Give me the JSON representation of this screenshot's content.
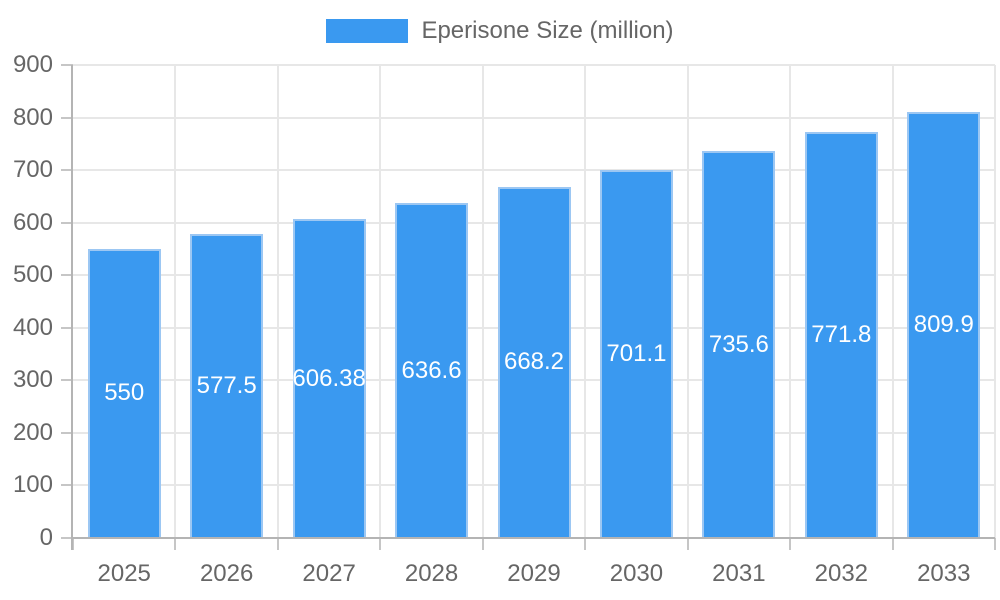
{
  "chart": {
    "colors": {
      "bar_fill": "#3a99f0",
      "bar_border": "#9cc7f3",
      "grid": "#e7e7e7",
      "axis": "#b4b4b4",
      "tick": "#c6c6c6",
      "text": "#666666",
      "bar_label_text": "#ffffff",
      "background": "#ffffff"
    }
  },
  "chart_data": {
    "type": "bar",
    "title": "",
    "xlabel": "",
    "ylabel": "",
    "legend_position": "top",
    "grid": true,
    "categories": [
      "2025",
      "2026",
      "2027",
      "2028",
      "2029",
      "2030",
      "2031",
      "2032",
      "2033"
    ],
    "series": [
      {
        "name": "Eperisone Size (million)",
        "values": [
          550,
          577.5,
          606.38,
          636.6,
          668.2,
          701.1,
          735.6,
          771.8,
          809.9
        ]
      }
    ],
    "value_labels": [
      "550",
      "577.5",
      "606.38",
      "636.6",
      "668.2",
      "701.1",
      "735.6",
      "771.8",
      "809.9"
    ],
    "ylim": [
      0,
      900
    ],
    "yticks": [
      0,
      100,
      200,
      300,
      400,
      500,
      600,
      700,
      800,
      900
    ]
  }
}
